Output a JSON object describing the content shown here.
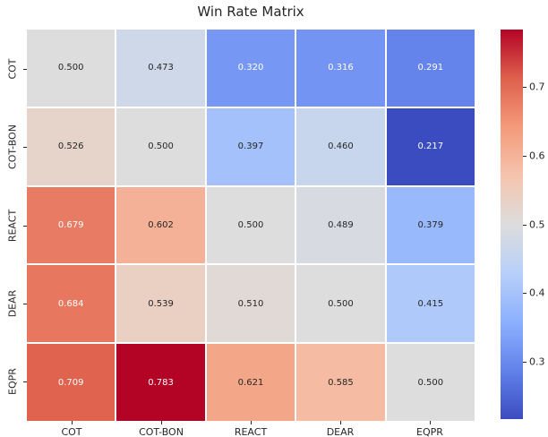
{
  "title": "Win Rate Matrix",
  "colors": {
    "background": "#ffffff",
    "grid_line": "#ffffff",
    "dark_text": "#262626",
    "light_text": "#ffffff"
  },
  "chart_data": {
    "type": "heatmap",
    "title": "Win Rate Matrix",
    "rows": [
      "COT",
      "COT-BON",
      "REACT",
      "DEAR",
      "EQPR"
    ],
    "columns": [
      "COT",
      "COT-BON",
      "REACT",
      "DEAR",
      "EQPR"
    ],
    "values": [
      [
        0.5,
        0.473,
        0.32,
        0.316,
        0.291
      ],
      [
        0.526,
        0.5,
        0.397,
        0.46,
        0.217
      ],
      [
        0.679,
        0.602,
        0.5,
        0.489,
        0.379
      ],
      [
        0.684,
        0.539,
        0.51,
        0.5,
        0.415
      ],
      [
        0.709,
        0.783,
        0.621,
        0.585,
        0.5
      ]
    ],
    "value_decimals": 3,
    "vmin": 0.217,
    "vmax": 0.783,
    "colormap": "coolwarm",
    "colormap_stops": [
      "#3B4CC0",
      "#6282EA",
      "#8DB0FE",
      "#B8D0F9",
      "#DDDDDD",
      "#F5C4AD",
      "#F49A7B",
      "#DE604D",
      "#B40426"
    ],
    "colorbar_ticks": [
      0.7,
      0.6,
      0.5,
      0.4,
      0.3
    ],
    "colorbar_tick_decimals": 1,
    "legend_position": "right-colorbar",
    "grid": false
  }
}
